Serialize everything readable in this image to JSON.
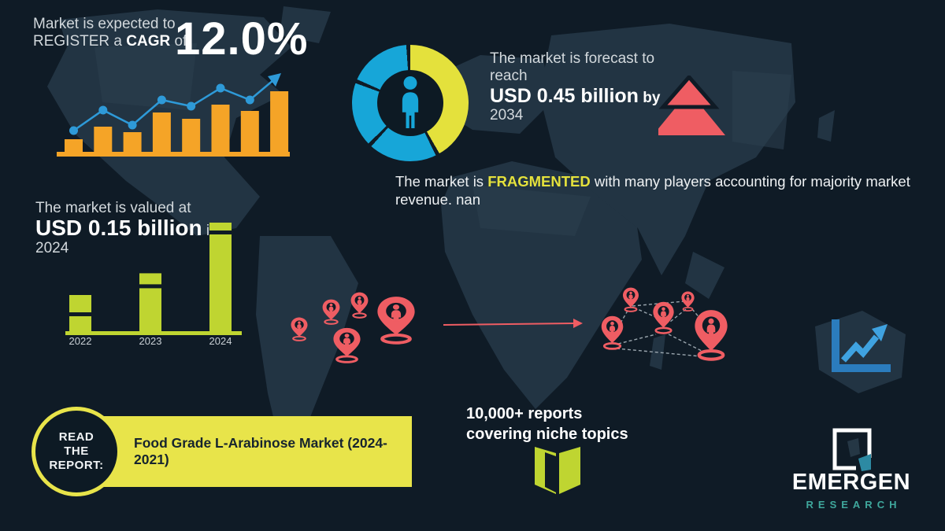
{
  "colors": {
    "background": "#0f1b26",
    "map_land": "#223443",
    "map_land_light": "#2b3f4e",
    "orange": "#f5a427",
    "line_blue": "#2e9ad8",
    "donut_blue": "#17a6d8",
    "yellow": "#e4e13c",
    "banner_yellow": "#e8e44a",
    "red": "#ef5d63",
    "green": "#bfd531",
    "teal": "#3fa79c",
    "icon_blue_dark": "#2b7cbd",
    "icon_blue_light": "#3fa2e0",
    "text_light": "#d2d8dc",
    "text_dark": "#16242e"
  },
  "cagr": {
    "line1": "Market is expected to",
    "line2_prefix": "REGISTER a ",
    "line2_keyword": "CAGR",
    "line2_suffix": " of",
    "value": "12.0%"
  },
  "forecast": {
    "line1": "The market is forecast to",
    "line2": "reach",
    "value": "USD 0.45 billion",
    "by": " by",
    "year": "2034"
  },
  "fragmented": {
    "prefix": "The market is ",
    "keyword": "FRAGMENTED",
    "suffix": " with many players accounting for majority market revenue. nan"
  },
  "valuation": {
    "line1": "The market is valued at",
    "value": "USD 0.15 billion",
    "in": " in",
    "year": "2024"
  },
  "read_report": {
    "circle_line1": "READ",
    "circle_line2": "THE",
    "circle_line3": "REPORT:",
    "banner": "Food Grade L-Arabinose Market (2024-2021)"
  },
  "reports": {
    "line1": "10,000+ reports",
    "line2": "covering niche topics"
  },
  "brand": {
    "name": "EMERGEN",
    "sub": "RESEARCH"
  },
  "chart_data": [
    {
      "type": "bar",
      "name": "cagr-growth-chart",
      "title": "Decorative CAGR growth chart (orange bars, blue trend line with arrow)",
      "categories": [
        "1",
        "2",
        "3",
        "4",
        "5",
        "6",
        "7",
        "8"
      ],
      "series": [
        {
          "name": "bars",
          "values": [
            16,
            32,
            25,
            50,
            42,
            60,
            52,
            77
          ]
        },
        {
          "name": "trend-line",
          "values": [
            27,
            53,
            34,
            66,
            58,
            81,
            66
          ]
        }
      ],
      "unit": "relative-height-px",
      "ylim": [
        0,
        108
      ]
    },
    {
      "type": "pie",
      "name": "market-share-donut",
      "title": "Decorative market-share donut with person icon",
      "segments": [
        {
          "label": "leading-share",
          "deg": 150,
          "color": "#e4e13c"
        },
        {
          "label": "other-players-1",
          "deg": 68,
          "color": "#17a6d8"
        },
        {
          "label": "other-players-2",
          "deg": 64,
          "color": "#17a6d8"
        },
        {
          "label": "other-players-3",
          "deg": 62,
          "color": "#17a6d8"
        }
      ],
      "gap_deg": 4
    },
    {
      "type": "bar",
      "name": "valuation-chart",
      "title": "Market value by year (USD billion; 2024 stated as USD 0.15 billion)",
      "categories": [
        "2022",
        "2023",
        "2024"
      ],
      "values": [
        0.05,
        0.08,
        0.15
      ],
      "unit": "USD billion (2022/2023 estimated from bar heights)"
    }
  ]
}
